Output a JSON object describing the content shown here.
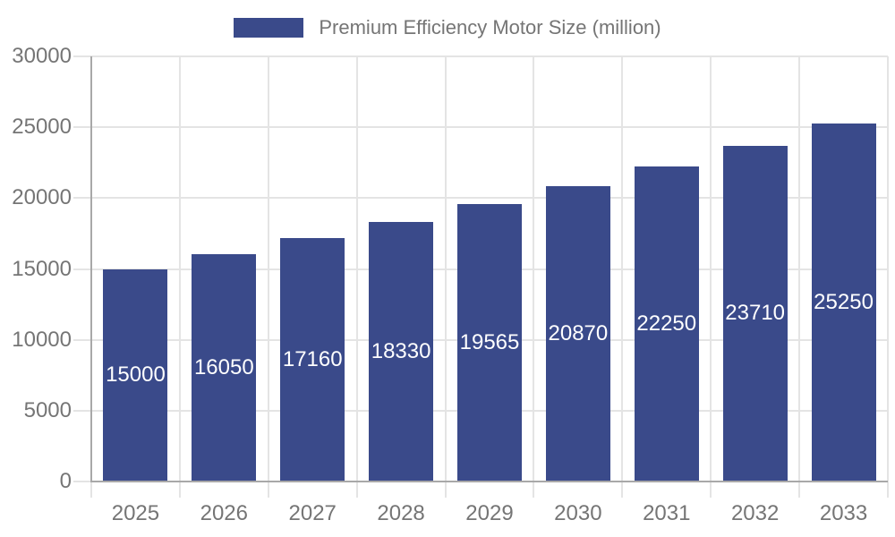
{
  "legend": {
    "label": "Premium Efficiency Motor Size (million)",
    "swatch_color": "#3A4A8A"
  },
  "chart_data": {
    "type": "bar",
    "title": "Premium Efficiency Motor Size (million)",
    "series_name": "Premium Efficiency Motor Size (million)",
    "categories": [
      "2025",
      "2026",
      "2027",
      "2028",
      "2029",
      "2030",
      "2031",
      "2032",
      "2033"
    ],
    "values": [
      15000,
      16050,
      17160,
      18330,
      19565,
      20870,
      22250,
      23710,
      25250
    ],
    "xlabel": "",
    "ylabel": "",
    "ylim": [
      0,
      30000
    ],
    "ytick_step": 5000,
    "yticks": [
      0,
      5000,
      10000,
      15000,
      20000,
      25000,
      30000
    ],
    "grid": true,
    "legend_position": "top",
    "bar_color": "#3A4A8A",
    "bar_label_color": "#FFFFFF",
    "axis_text_color": "#757575",
    "grid_color": "#E4E4E4",
    "axis_line_color": "#A8A8A8",
    "background_color": "#FFFFFF"
  }
}
